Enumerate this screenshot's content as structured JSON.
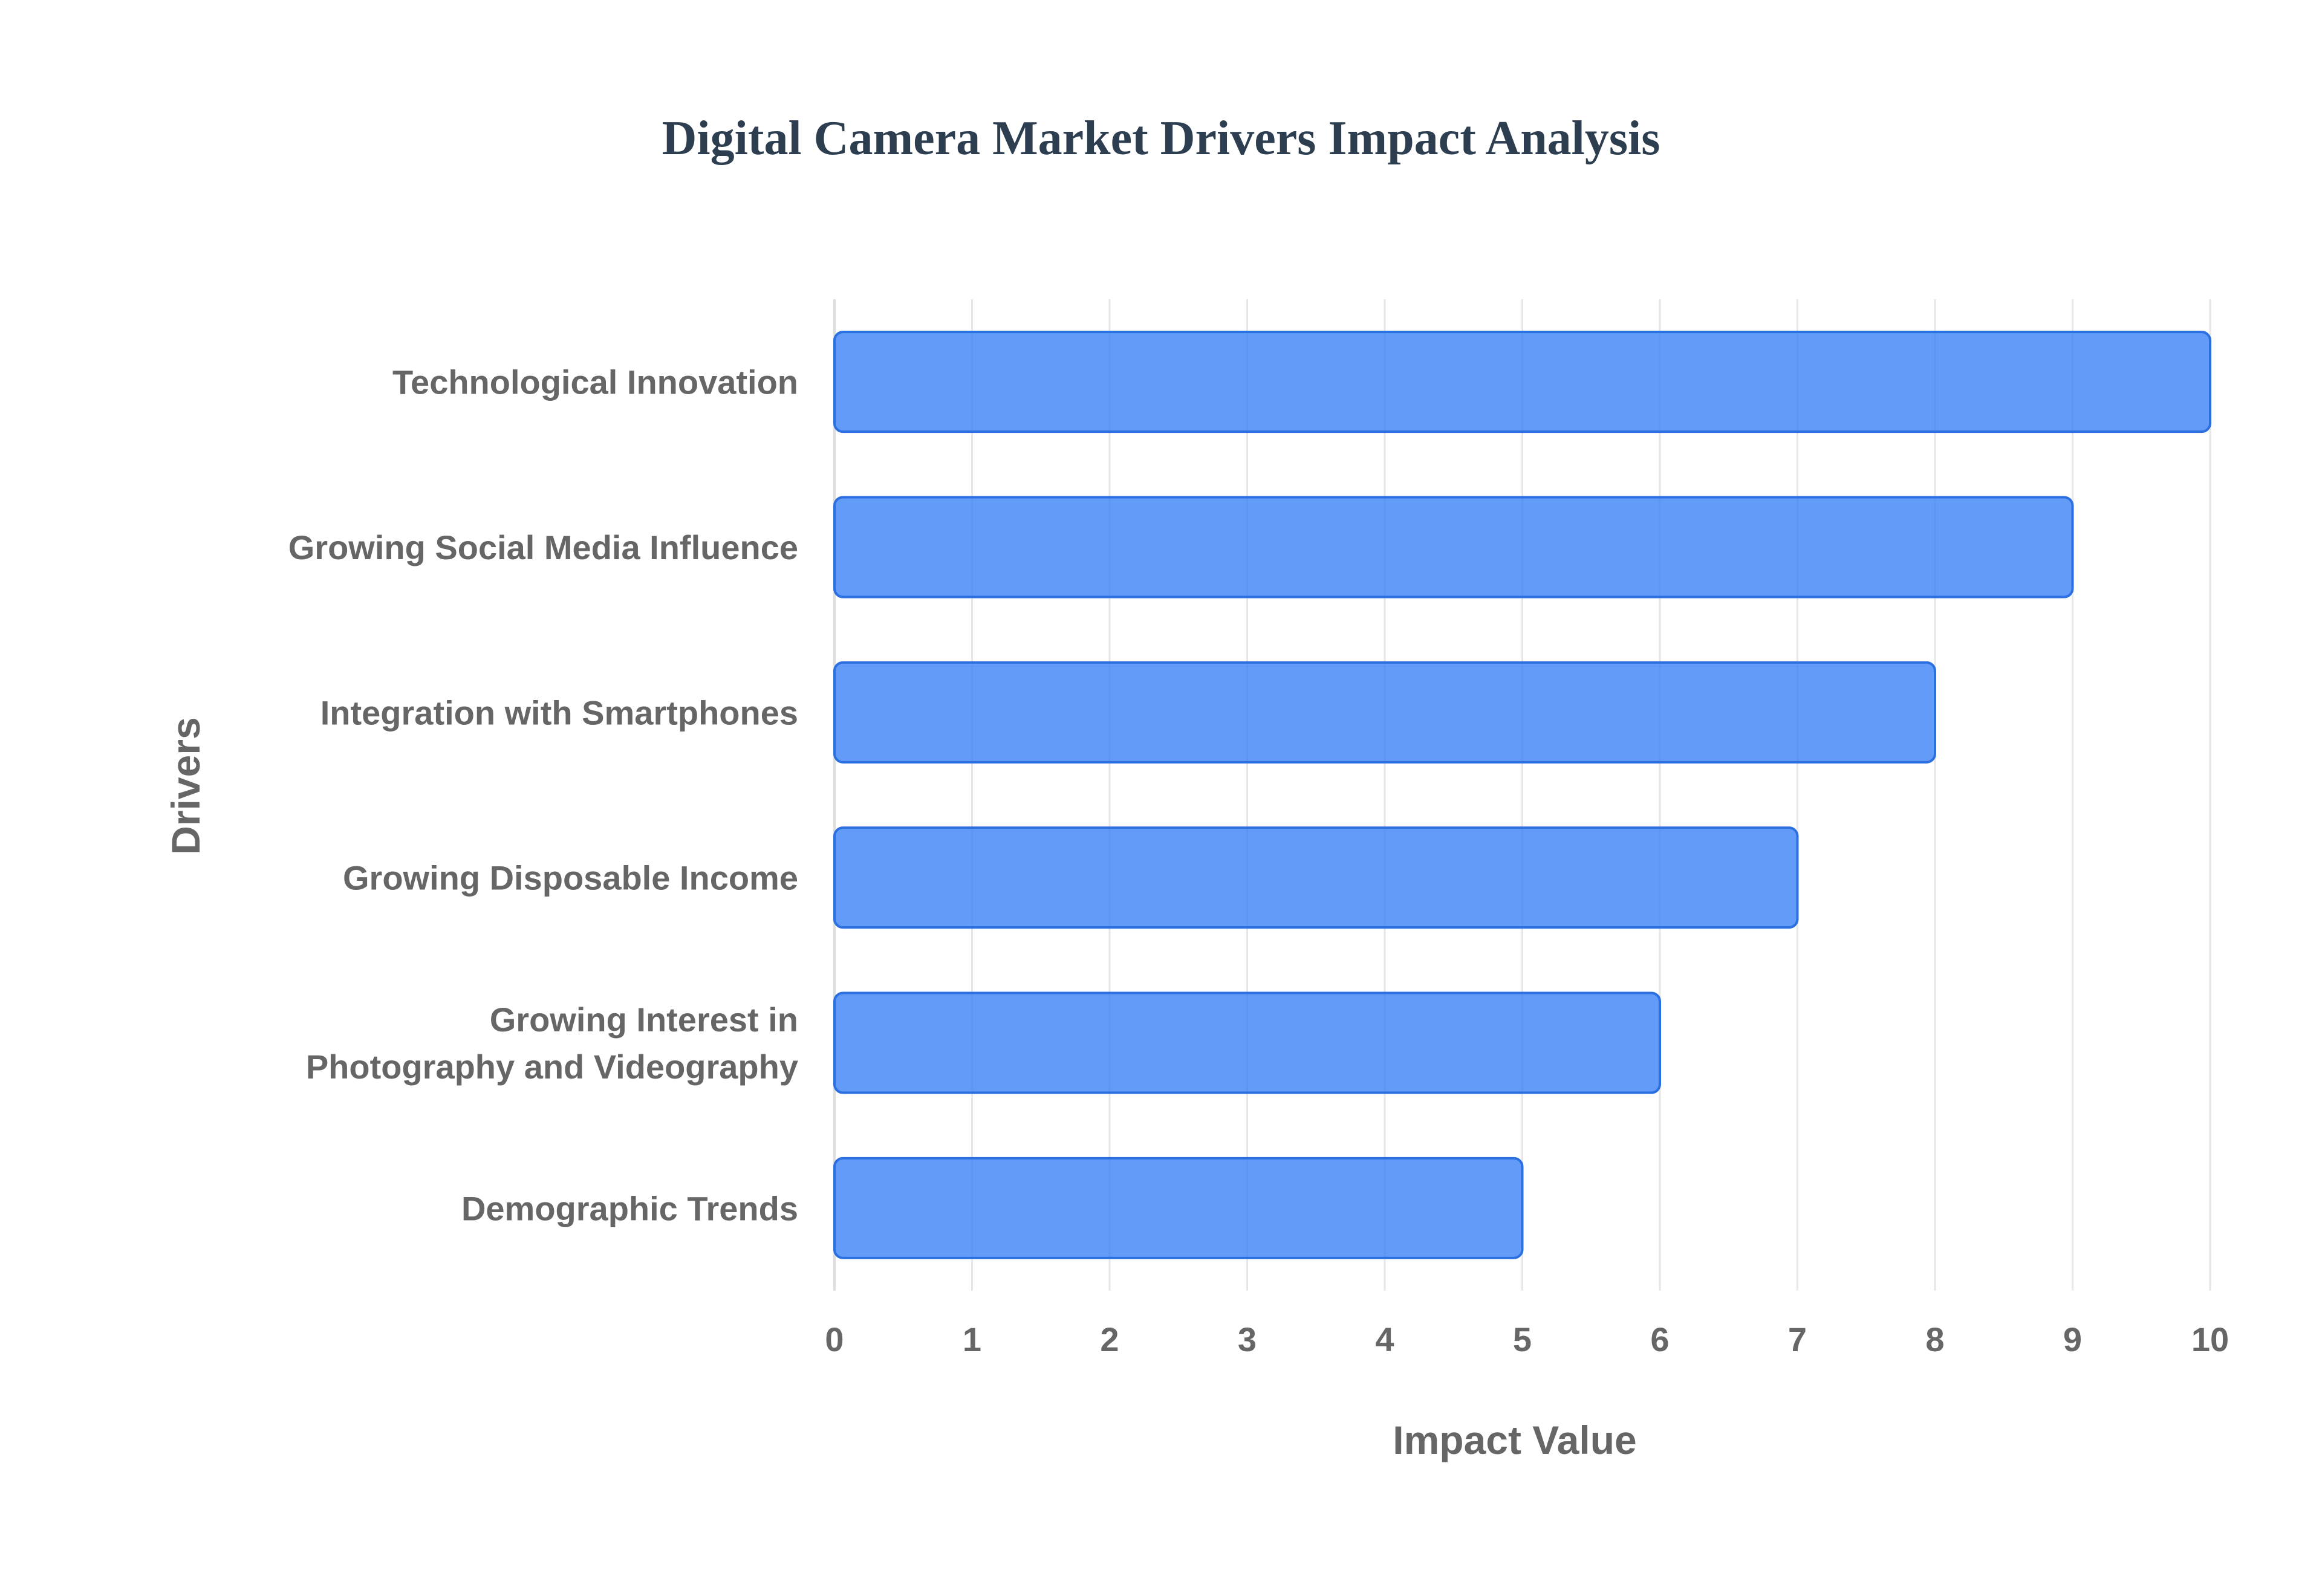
{
  "chart_data": {
    "type": "bar",
    "orientation": "horizontal",
    "title": "Digital Camera Market Drivers Impact Analysis",
    "xlabel": "Impact Value",
    "ylabel": "Drivers",
    "categories": [
      "Technological Innovation",
      "Growing Social Media Influence",
      "Integration with Smartphones",
      "Growing Disposable Income",
      "Growing Interest in Photography and Videography",
      "Demographic Trends"
    ],
    "category_display_lines": [
      [
        "Technological Innovation"
      ],
      [
        "Growing Social Media Influence"
      ],
      [
        "Integration with Smartphones"
      ],
      [
        "Growing Disposable Income"
      ],
      [
        "Growing Interest in",
        "Photography and Videography"
      ],
      [
        "Demographic Trends"
      ]
    ],
    "values": [
      10,
      9,
      8,
      7,
      6,
      5
    ],
    "xlim": [
      0,
      10
    ],
    "xticks": [
      "0",
      "1",
      "2",
      "3",
      "4",
      "5",
      "6",
      "7",
      "8",
      "9",
      "10"
    ],
    "grid": true,
    "legend": "none",
    "colors": {
      "bar_fill": "#3b82f6",
      "bar_stroke": "#2b6fe0",
      "title": "#2c3e50",
      "text": "#666666",
      "grid": "#e6e6e6",
      "axis": "#dddddd",
      "background": "#ffffff"
    }
  }
}
